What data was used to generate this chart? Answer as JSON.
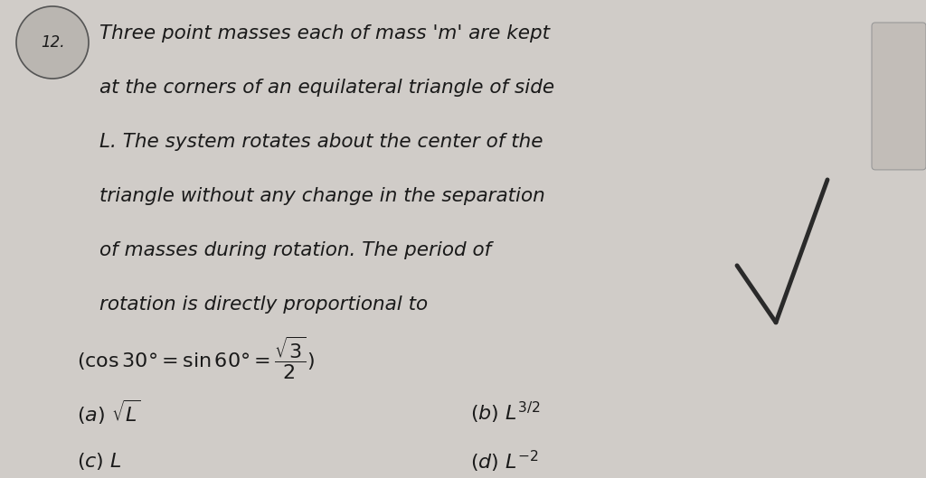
{
  "background_color": "#d0ccc8",
  "text_color": "#1a1a1a",
  "question_number": "12.",
  "main_text_lines": [
    "Three point masses each of mass 'm' are kept",
    "at the corners of an equilateral triangle of side",
    "L. The system rotates about the center of the",
    "triangle without any change in the separation",
    "of masses during rotation. The period of",
    "rotation is directly proportional to"
  ],
  "figsize": [
    10.24,
    5.29
  ],
  "dpi": 100
}
